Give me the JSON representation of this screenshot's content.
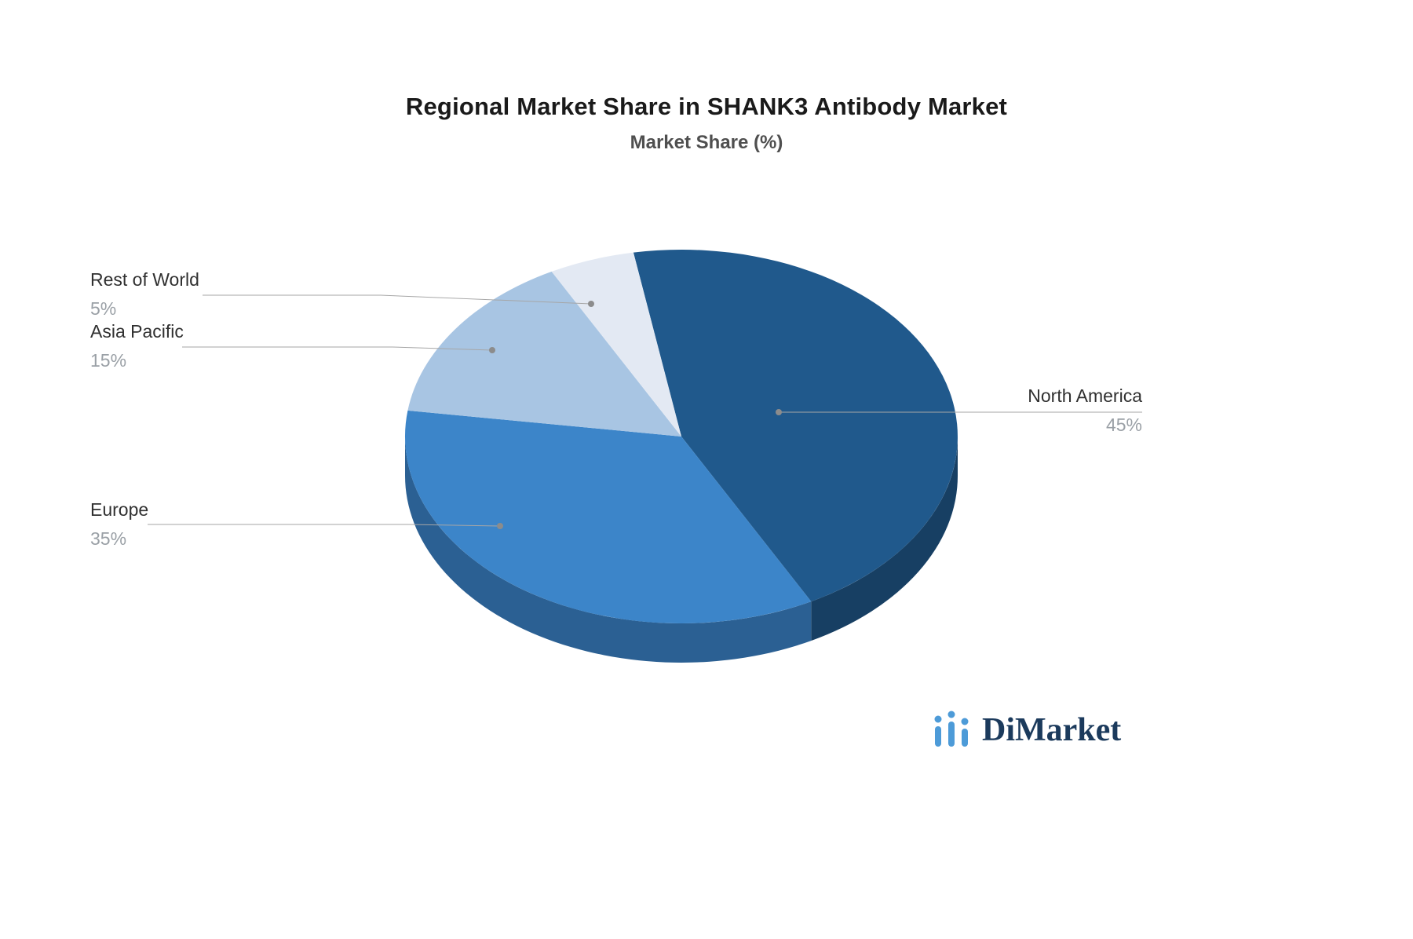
{
  "chart_data": {
    "type": "pie",
    "title": "Regional Market Share in SHANK3 Antibody Market",
    "subtitle": "Market Share (%)",
    "unit": "%",
    "value_suffix": "%",
    "direction": "clockwise",
    "rotation_deg": -10,
    "legend": "none",
    "style": "3d-pie with callout labels (name above, percent below)",
    "slices": [
      {
        "label": "North America",
        "value": 45,
        "color": "#20598C",
        "side_color": "#173F63"
      },
      {
        "label": "Europe",
        "value": 35,
        "color": "#3C85C9",
        "side_color": "#2B6093"
      },
      {
        "label": "Asia Pacific",
        "value": 15,
        "color": "#A8C5E3",
        "side_color": "#7EA2C4"
      },
      {
        "label": "Rest of World",
        "value": 5,
        "color": "#E3E9F3",
        "side_color": "#BCC9DB"
      }
    ]
  },
  "branding": {
    "logo_text": "DiMarket",
    "logo_icon": "bar-chart-icon",
    "logo_color": "#1B3A5C",
    "icon_color": "#4D9BD8"
  },
  "colors": {
    "background": "#FFFFFF",
    "title": "#1A1A1A",
    "subtitle": "#4F4F4F",
    "label_text": "#303030",
    "value_text": "#9AA0A6",
    "leader_line": "#A6A6A6",
    "leader_dot": "#8C8C8C"
  }
}
